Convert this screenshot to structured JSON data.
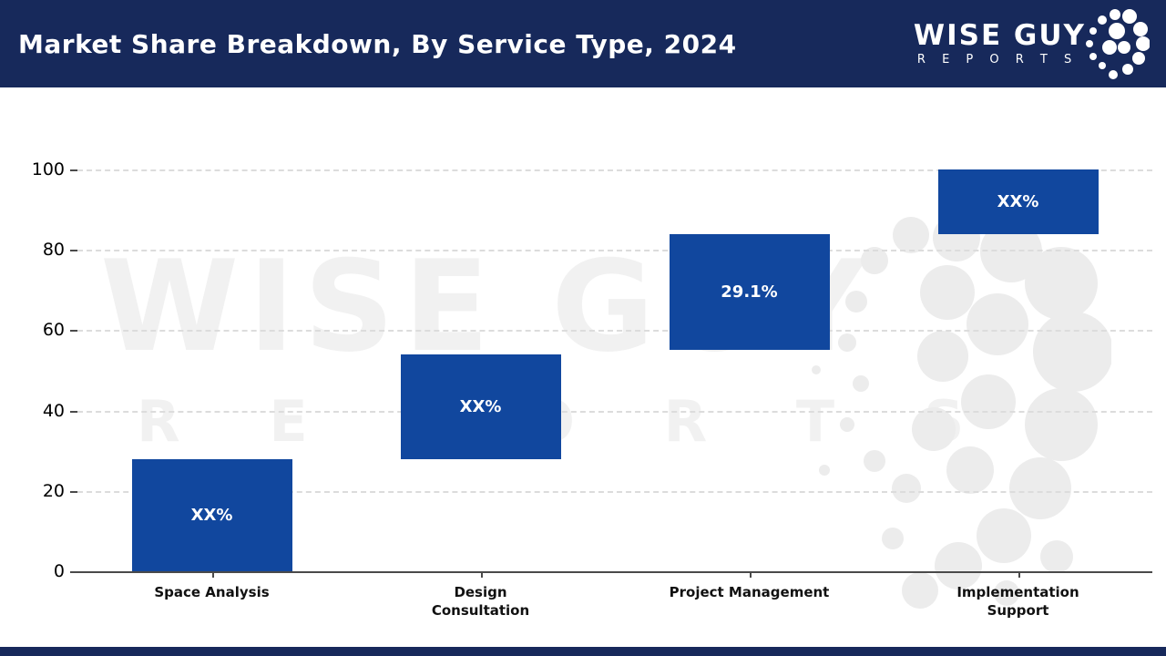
{
  "header": {
    "title": "Market Share Breakdown, By Service Type, 2024",
    "logo": {
      "line1": "WISE GUY",
      "line2": "R E P O R T S"
    }
  },
  "watermark": {
    "line1": "WISE GUY",
    "line2": "R E P O R T S"
  },
  "chart_data": {
    "type": "bar",
    "subtype": "floating-waterfall",
    "title": "Market Share Breakdown, By Service Type, 2024",
    "categories": [
      "Space Analysis",
      "Design Consultation",
      "Project Management",
      "Implementation Support"
    ],
    "bars": [
      {
        "category": "Space Analysis",
        "category_lines": [
          "Space Analysis"
        ],
        "label": "XX%",
        "start": 0,
        "end": 28
      },
      {
        "category": "Design Consultation",
        "category_lines": [
          "Design",
          "Consultation"
        ],
        "label": "XX%",
        "start": 28,
        "end": 54
      },
      {
        "category": "Project Management",
        "category_lines": [
          "Project Management"
        ],
        "label": "29.1%",
        "start": 55,
        "end": 84
      },
      {
        "category": "Implementation Support",
        "category_lines": [
          "Implementation",
          "Support"
        ],
        "label": "XX%",
        "start": 84,
        "end": 100
      }
    ],
    "yticks": [
      0,
      20,
      40,
      60,
      80,
      100
    ],
    "ylim": [
      0,
      100
    ],
    "xlabel": "",
    "ylabel": "",
    "grid": "dashed-horizontal",
    "legend": "none",
    "bar_color": "#11479E"
  },
  "colors": {
    "header_bg": "#17295b",
    "footer_bg": "#17295b",
    "bar": "#11479E",
    "title_text": "#ffffff",
    "watermark": "#ececec"
  }
}
